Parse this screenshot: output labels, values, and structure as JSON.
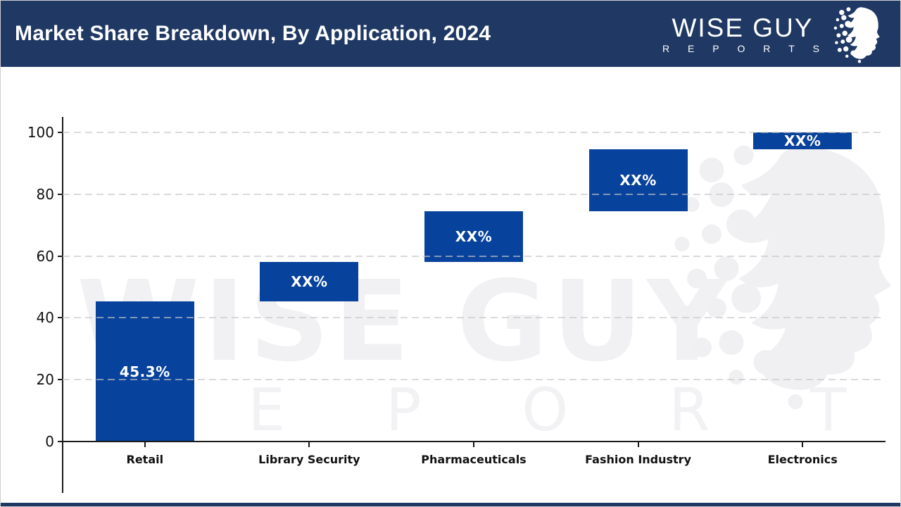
{
  "header": {
    "title": "Market Share Breakdown, By Application, 2024",
    "logo": {
      "line1": "WISE GUY",
      "line2": "REPORTS"
    }
  },
  "watermark": {
    "line1": "WISE GUY",
    "line2": "REPORTS"
  },
  "colors": {
    "header_bg": "#1f3864",
    "bar": "#07429c",
    "bar_label": "#ffffff",
    "gridline": "#dcdcdc",
    "axis": "#1a1a1a",
    "watermark": "#f1f1f4"
  },
  "chart_data": {
    "type": "bar",
    "subtype": "waterfall",
    "title": "Market Share Breakdown, By Application, 2024",
    "categories": [
      "Retail",
      "Library Security",
      "Pharmaceuticals",
      "Fashion Industry",
      "Electronics"
    ],
    "segments": [
      {
        "category": "Retail",
        "start": 0,
        "end": 45.3,
        "label": "45.3%"
      },
      {
        "category": "Library Security",
        "start": 45.3,
        "end": 58.0,
        "label": "XX%"
      },
      {
        "category": "Pharmaceuticals",
        "start": 58.0,
        "end": 74.5,
        "label": "XX%"
      },
      {
        "category": "Fashion Industry",
        "start": 74.5,
        "end": 94.5,
        "label": "XX%"
      },
      {
        "category": "Electronics",
        "start": 94.5,
        "end": 100,
        "label": "XX%"
      }
    ],
    "xlabel": "",
    "ylabel": "",
    "ylim": [
      0,
      105
    ],
    "yticks": [
      0,
      20,
      40,
      60,
      80,
      100
    ],
    "grid": true,
    "grid_style": "dashed",
    "legend": false
  }
}
